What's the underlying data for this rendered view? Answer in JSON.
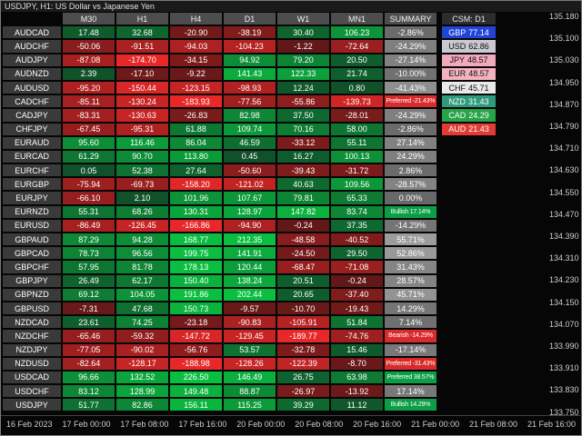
{
  "window": {
    "title": "USDJPY, H1: US Dollar vs Japanese Yen"
  },
  "matrix": {
    "columns": [
      "M30",
      "H1",
      "H4",
      "D1",
      "W1",
      "MN1",
      "SUMMARY"
    ],
    "rows": [
      {
        "pair": "AUDCAD",
        "values": [
          "17.48",
          "32.68",
          "-20.90",
          "-38.19",
          "30.40",
          "106.23"
        ],
        "summary": {
          "text": "-2.86%",
          "tone": "gray"
        }
      },
      {
        "pair": "AUDCHF",
        "values": [
          "-50.06",
          "-91.51",
          "-94.03",
          "-104.23",
          "-1.22",
          "-72.64"
        ],
        "summary": {
          "text": "-24.29%",
          "tone": "gray"
        }
      },
      {
        "pair": "AUDJPY",
        "values": [
          "-87.08",
          "-174.70",
          "-34.15",
          "94.92",
          "79.20",
          "20.50"
        ],
        "summary": {
          "text": "-27.14%",
          "tone": "gray"
        }
      },
      {
        "pair": "AUDNZD",
        "values": [
          "2.39",
          "-17.10",
          "-9.22",
          "141.43",
          "122.33",
          "21.74"
        ],
        "summary": {
          "text": "-10.00%",
          "tone": "gray"
        }
      },
      {
        "pair": "AUDUSD",
        "values": [
          "-95.20",
          "-150.44",
          "-123.15",
          "-98.93",
          "12.24",
          "0.80"
        ],
        "summary": {
          "text": "-41.43%",
          "tone": "gray"
        }
      },
      {
        "pair": "CADCHF",
        "values": [
          "-85.11",
          "-130.24",
          "-183.93",
          "-77.56",
          "-55.86",
          "-139.73"
        ],
        "summary": {
          "text": "Preferred -21.43%",
          "tone": "red"
        }
      },
      {
        "pair": "CADJPY",
        "values": [
          "-83.31",
          "-130.63",
          "-26.83",
          "82.98",
          "37.50",
          "-28.01"
        ],
        "summary": {
          "text": "-24.29%",
          "tone": "gray"
        }
      },
      {
        "pair": "CHFJPY",
        "values": [
          "-67.45",
          "-95.31",
          "61.88",
          "109.74",
          "70.16",
          "58.00"
        ],
        "summary": {
          "text": "-2.86%",
          "tone": "gray"
        }
      },
      {
        "pair": "EURAUD",
        "values": [
          "95.60",
          "116.46",
          "86.04",
          "46.59",
          "-33.12",
          "55.11"
        ],
        "summary": {
          "text": "27.14%",
          "tone": "gray"
        }
      },
      {
        "pair": "EURCAD",
        "values": [
          "61.29",
          "90.70",
          "113.80",
          "0.45",
          "16.27",
          "100.13"
        ],
        "summary": {
          "text": "24.29%",
          "tone": "gray"
        }
      },
      {
        "pair": "EURCHF",
        "values": [
          "0.05",
          "52.38",
          "27.64",
          "-50.60",
          "-39.43",
          "-31.72"
        ],
        "summary": {
          "text": "2.86%",
          "tone": "gray"
        }
      },
      {
        "pair": "EURGBP",
        "values": [
          "-75.94",
          "-69.73",
          "-158.20",
          "-121.02",
          "40.63",
          "109.56"
        ],
        "summary": {
          "text": "-28.57%",
          "tone": "gray"
        }
      },
      {
        "pair": "EURJPY",
        "values": [
          "-66.10",
          "2.10",
          "101.96",
          "107.67",
          "79.81",
          "65.33"
        ],
        "summary": {
          "text": "0.00%",
          "tone": "gray"
        }
      },
      {
        "pair": "EURNZD",
        "values": [
          "55.31",
          "68.26",
          "130.31",
          "128.97",
          "147.82",
          "83.74"
        ],
        "summary": {
          "text": "Bullish 17.14%",
          "tone": "green"
        }
      },
      {
        "pair": "EURUSD",
        "values": [
          "-86.49",
          "-126.45",
          "-166.86",
          "-94.90",
          "-0.24",
          "37.35"
        ],
        "summary": {
          "text": "-14.29%",
          "tone": "gray"
        }
      },
      {
        "pair": "GBPAUD",
        "values": [
          "87.29",
          "94.28",
          "168.77",
          "212.35",
          "-48.58",
          "-40.52"
        ],
        "summary": {
          "text": "55.71%",
          "tone": "gray"
        }
      },
      {
        "pair": "GBPCAD",
        "values": [
          "78.73",
          "96.56",
          "199.75",
          "141.91",
          "-24.50",
          "29.50"
        ],
        "summary": {
          "text": "52.86%",
          "tone": "gray"
        }
      },
      {
        "pair": "GBPCHF",
        "values": [
          "57.95",
          "81.78",
          "178.13",
          "120.44",
          "-68.47",
          "-71.08"
        ],
        "summary": {
          "text": "31.43%",
          "tone": "gray"
        }
      },
      {
        "pair": "GBPJPY",
        "values": [
          "26.49",
          "62.17",
          "150.40",
          "138.24",
          "20.51",
          "-0.24"
        ],
        "summary": {
          "text": "28.57%",
          "tone": "gray"
        }
      },
      {
        "pair": "GBPNZD",
        "values": [
          "69.12",
          "104.05",
          "191.86",
          "202.44",
          "20.65",
          "-37.40"
        ],
        "summary": {
          "text": "45.71%",
          "tone": "gray"
        }
      },
      {
        "pair": "GBPUSD",
        "values": [
          "-7.31",
          "47.68",
          "150.73",
          "-9.57",
          "-10.70",
          "-19.43"
        ],
        "summary": {
          "text": "14.29%",
          "tone": "gray"
        }
      },
      {
        "pair": "NZDCAD",
        "values": [
          "23.61",
          "74.25",
          "-23.18",
          "-90.83",
          "-105.91",
          "51.84"
        ],
        "summary": {
          "text": "7.14%",
          "tone": "gray"
        }
      },
      {
        "pair": "NZDCHF",
        "values": [
          "-65.46",
          "-59.32",
          "-147.72",
          "-129.45",
          "-189.77",
          "-74.76"
        ],
        "summary": {
          "text": "Bearish -14.29%",
          "tone": "red"
        }
      },
      {
        "pair": "NZDJPY",
        "values": [
          "-77.05",
          "-90.02",
          "-56.76",
          "53.57",
          "-32.78",
          "15.46"
        ],
        "summary": {
          "text": "-17.14%",
          "tone": "gray"
        }
      },
      {
        "pair": "NZDUSD",
        "values": [
          "-82.64",
          "-128.17",
          "-188.98",
          "-128.26",
          "-122.39",
          "-8.70"
        ],
        "summary": {
          "text": "Preferred -31.43%",
          "tone": "red"
        }
      },
      {
        "pair": "USDCAD",
        "values": [
          "96.66",
          "132.52",
          "226.50",
          "146.49",
          "26.75",
          "63.98"
        ],
        "summary": {
          "text": "Preferred 38.57%",
          "tone": "green"
        }
      },
      {
        "pair": "USDCHF",
        "values": [
          "83.12",
          "128.99",
          "149.48",
          "88.87",
          "-26.97",
          "-13.92"
        ],
        "summary": {
          "text": "17.14%",
          "tone": "gray"
        }
      },
      {
        "pair": "USDJPY",
        "values": [
          "51.77",
          "82.86",
          "156.11",
          "115.25",
          "39.29",
          "11.12"
        ],
        "summary": {
          "text": "Bullish 14.29%",
          "tone": "green"
        }
      }
    ]
  },
  "csm": {
    "header": "CSM: D1",
    "items": [
      {
        "code": "GBP",
        "value": "77.14",
        "bg": "#2343d7",
        "fg": "#ffffff"
      },
      {
        "code": "USD",
        "value": "62.86",
        "bg": "#c9c9d1",
        "fg": "#111111"
      },
      {
        "code": "JPY",
        "value": "48.57",
        "bg": "#f2a9bb",
        "fg": "#111111"
      },
      {
        "code": "EUR",
        "value": "48.57",
        "bg": "#f2b3be",
        "fg": "#111111"
      },
      {
        "code": "CHF",
        "value": "45.71",
        "bg": "#e9e9e9",
        "fg": "#111111"
      },
      {
        "code": "NZD",
        "value": "31.43",
        "bg": "#2f9a7d",
        "fg": "#ffffff"
      },
      {
        "code": "CAD",
        "value": "24.29",
        "bg": "#27a348",
        "fg": "#ffffff"
      },
      {
        "code": "AUD",
        "value": "21.43",
        "bg": "#e23b35",
        "fg": "#ffffff"
      }
    ]
  },
  "price_scale": [
    "135.180",
    "135.100",
    "135.030",
    "134.950",
    "134.870",
    "134.790",
    "134.710",
    "134.630",
    "134.550",
    "134.470",
    "134.390",
    "134.310",
    "134.230",
    "134.150",
    "134.070",
    "133.990",
    "133.910",
    "133.830",
    "133.750"
  ],
  "time_axis": [
    "16 Feb 2023",
    "17 Feb 00:00",
    "17 Feb 08:00",
    "17 Feb 16:00",
    "20 Feb 00:00",
    "20 Feb 08:00",
    "20 Feb 16:00",
    "21 Feb 00:00",
    "21 Feb 08:00",
    "21 Feb 16:00"
  ],
  "colors": {
    "summary_bullish": "#0b9e46",
    "summary_bearish": "#d92b2b",
    "positive_bright": "#0abc41",
    "negative_bright": "#e62828"
  }
}
